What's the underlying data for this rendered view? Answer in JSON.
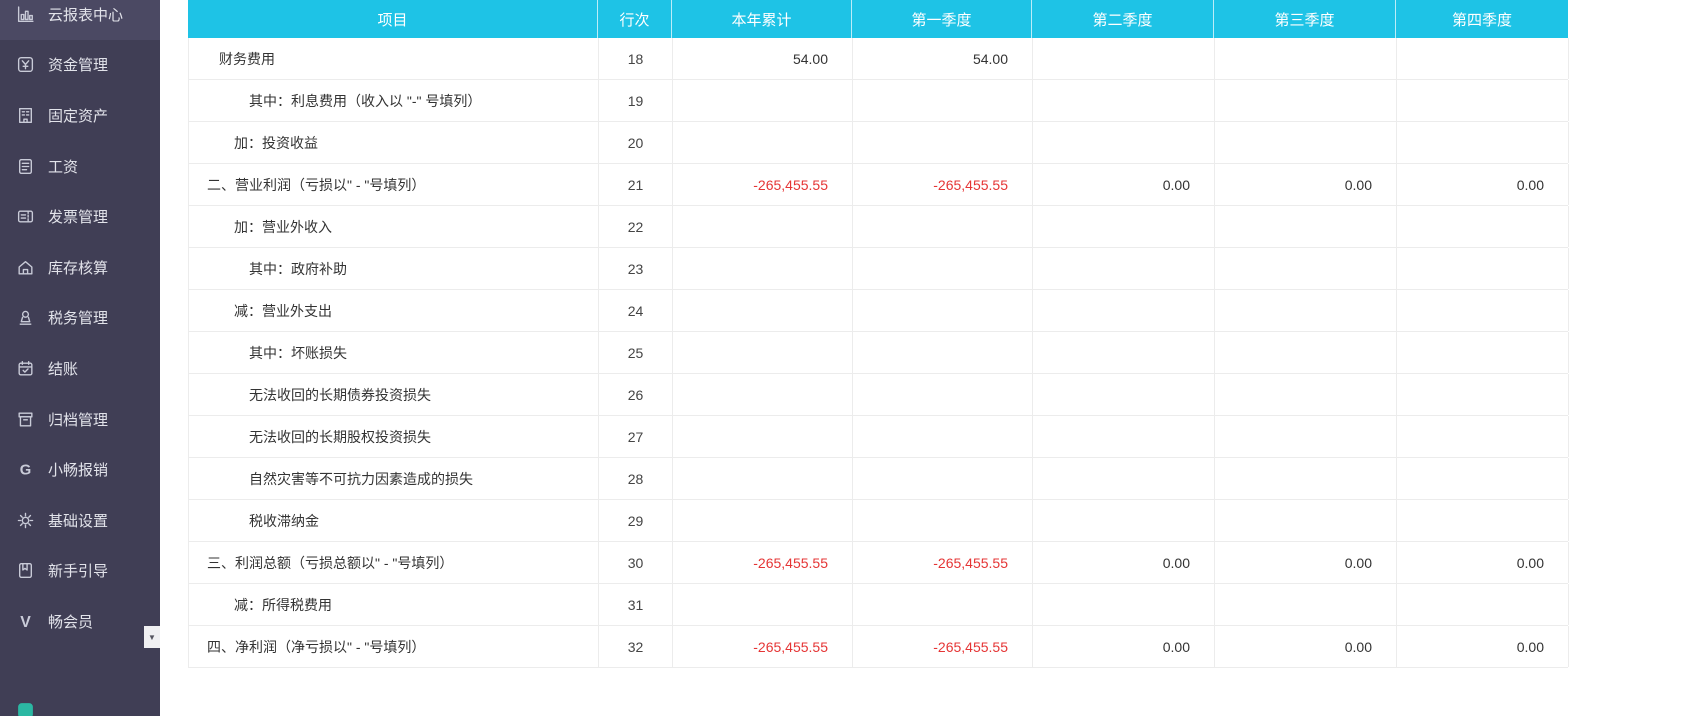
{
  "colors": {
    "accent": "#1EC3E6",
    "negative": "#E53535",
    "sidebar_bg": "#403E55",
    "header_text": "#FFFFFF"
  },
  "sidebar": {
    "items": [
      {
        "label": "云报表中心",
        "icon": "report-chart-icon"
      },
      {
        "label": "资金管理",
        "icon": "money-icon"
      },
      {
        "label": "固定资产",
        "icon": "fixed-assets-icon"
      },
      {
        "label": "工资",
        "icon": "salary-icon"
      },
      {
        "label": "发票管理",
        "icon": "invoice-icon"
      },
      {
        "label": "库存核算",
        "icon": "inventory-icon"
      },
      {
        "label": "税务管理",
        "icon": "tax-icon"
      },
      {
        "label": "结账",
        "icon": "closing-icon"
      },
      {
        "label": "归档管理",
        "icon": "archive-icon"
      },
      {
        "label": "小畅报销",
        "icon": "reimburse-icon"
      },
      {
        "label": "基础设置",
        "icon": "settings-gear-icon"
      },
      {
        "label": "新手引导",
        "icon": "guide-icon"
      },
      {
        "label": "畅会员",
        "icon": "member-icon"
      }
    ],
    "scroll_button_icon": "chevron-down-icon"
  },
  "table": {
    "headers": [
      "项目",
      "行次",
      "本年累计",
      "第一季度",
      "第二季度",
      "第三季度",
      "第四季度"
    ],
    "rows": [
      {
        "item": "财务费用",
        "indent": 1,
        "line": "18",
        "values": [
          "54.00",
          "54.00",
          "",
          "",
          ""
        ]
      },
      {
        "item": "其中：利息费用（收入以 \"-\" 号填列）",
        "indent": 3,
        "line": "19",
        "values": [
          "",
          "",
          "",
          "",
          ""
        ]
      },
      {
        "item": "加：投资收益",
        "indent": 2,
        "line": "20",
        "values": [
          "",
          "",
          "",
          "",
          ""
        ]
      },
      {
        "item": "二、营业利润（亏损以\" - \"号填列）",
        "indent": 0,
        "line": "21",
        "values": [
          "-265,455.55",
          "-265,455.55",
          "0.00",
          "0.00",
          "0.00"
        ]
      },
      {
        "item": "加：营业外收入",
        "indent": 2,
        "line": "22",
        "values": [
          "",
          "",
          "",
          "",
          ""
        ]
      },
      {
        "item": "其中：政府补助",
        "indent": 3,
        "line": "23",
        "values": [
          "",
          "",
          "",
          "",
          ""
        ]
      },
      {
        "item": "减：营业外支出",
        "indent": 2,
        "line": "24",
        "values": [
          "",
          "",
          "",
          "",
          ""
        ]
      },
      {
        "item": "其中：坏账损失",
        "indent": 3,
        "line": "25",
        "values": [
          "",
          "",
          "",
          "",
          ""
        ]
      },
      {
        "item": "无法收回的长期债券投资损失",
        "indent": 3,
        "line": "26",
        "values": [
          "",
          "",
          "",
          "",
          ""
        ]
      },
      {
        "item": "无法收回的长期股权投资损失",
        "indent": 3,
        "line": "27",
        "values": [
          "",
          "",
          "",
          "",
          ""
        ]
      },
      {
        "item": "自然灾害等不可抗力因素造成的损失",
        "indent": 3,
        "line": "28",
        "values": [
          "",
          "",
          "",
          "",
          ""
        ]
      },
      {
        "item": "税收滞纳金",
        "indent": 3,
        "line": "29",
        "values": [
          "",
          "",
          "",
          "",
          ""
        ]
      },
      {
        "item": "三、利润总额（亏损总额以\" - \"号填列）",
        "indent": 0,
        "line": "30",
        "values": [
          "-265,455.55",
          "-265,455.55",
          "0.00",
          "0.00",
          "0.00"
        ]
      },
      {
        "item": "减：所得税费用",
        "indent": 2,
        "line": "31",
        "values": [
          "",
          "",
          "",
          "",
          ""
        ]
      },
      {
        "item": "四、净利润（净亏损以\" - \"号填列）",
        "indent": 0,
        "line": "32",
        "values": [
          "-265,455.55",
          "-265,455.55",
          "0.00",
          "0.00",
          "0.00"
        ]
      }
    ]
  }
}
